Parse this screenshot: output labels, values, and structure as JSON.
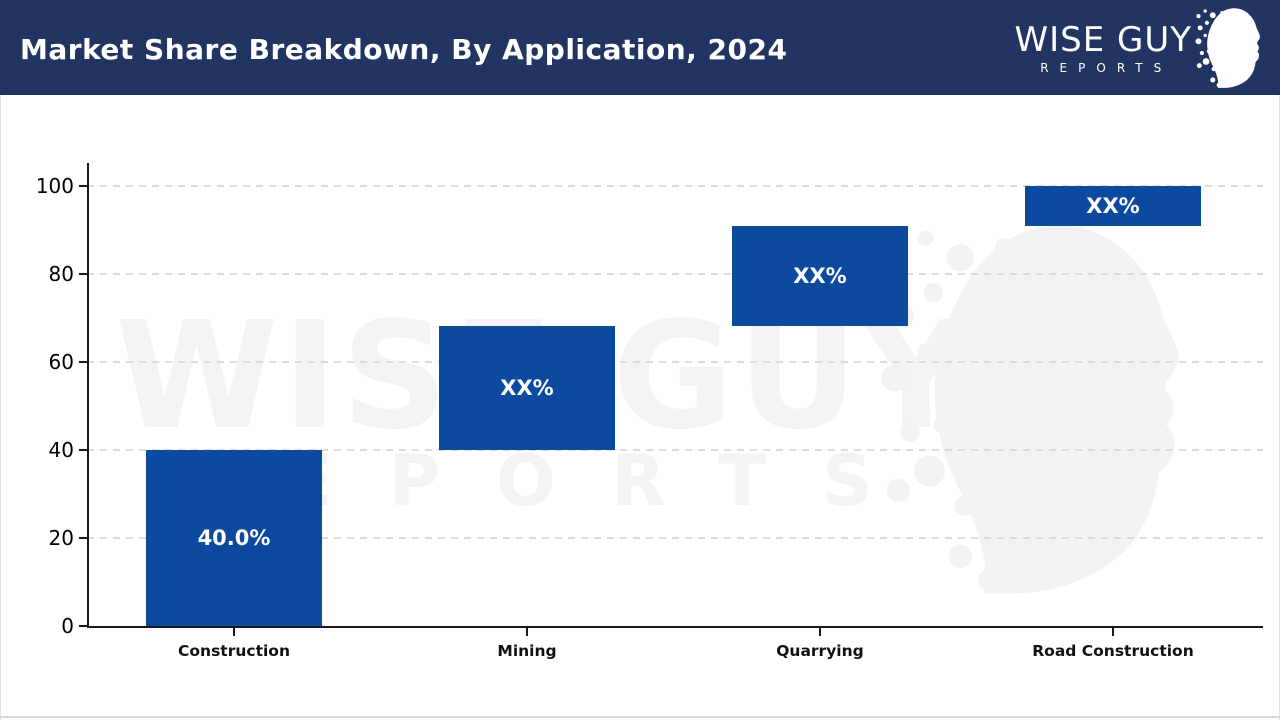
{
  "header": {
    "title": "Market Share Breakdown, By Application, 2024",
    "bg_color": "#223461",
    "logo": {
      "name": "WISE GUY",
      "sub": "REPORTS"
    }
  },
  "watermark": {
    "name": "WISE GUY",
    "sub": "REPORTS"
  },
  "chart_data": {
    "type": "bar",
    "variant": "waterfall",
    "title": "Market Share Breakdown, By Application, 2024",
    "categories": [
      "Construction",
      "Mining",
      "Quarrying",
      "Road Construction"
    ],
    "bars": [
      {
        "category": "Construction",
        "label": "40.0%",
        "start": 0,
        "end": 40
      },
      {
        "category": "Mining",
        "label": "XX%",
        "start": 40,
        "end": 68.2
      },
      {
        "category": "Quarrying",
        "label": "XX%",
        "start": 68.2,
        "end": 90.9
      },
      {
        "category": "Road Construction",
        "label": "XX%",
        "start": 90.9,
        "end": 100
      }
    ],
    "yticks": [
      0,
      20,
      40,
      60,
      80,
      100
    ],
    "ylim": [
      0,
      100
    ],
    "xlabel": "",
    "ylabel": "",
    "bar_color": "#0c4aa0",
    "bar_label_color": "#ffffff",
    "grid": "horizontal-dashed",
    "grid_color": "#dcdcdc",
    "legend": "none"
  }
}
